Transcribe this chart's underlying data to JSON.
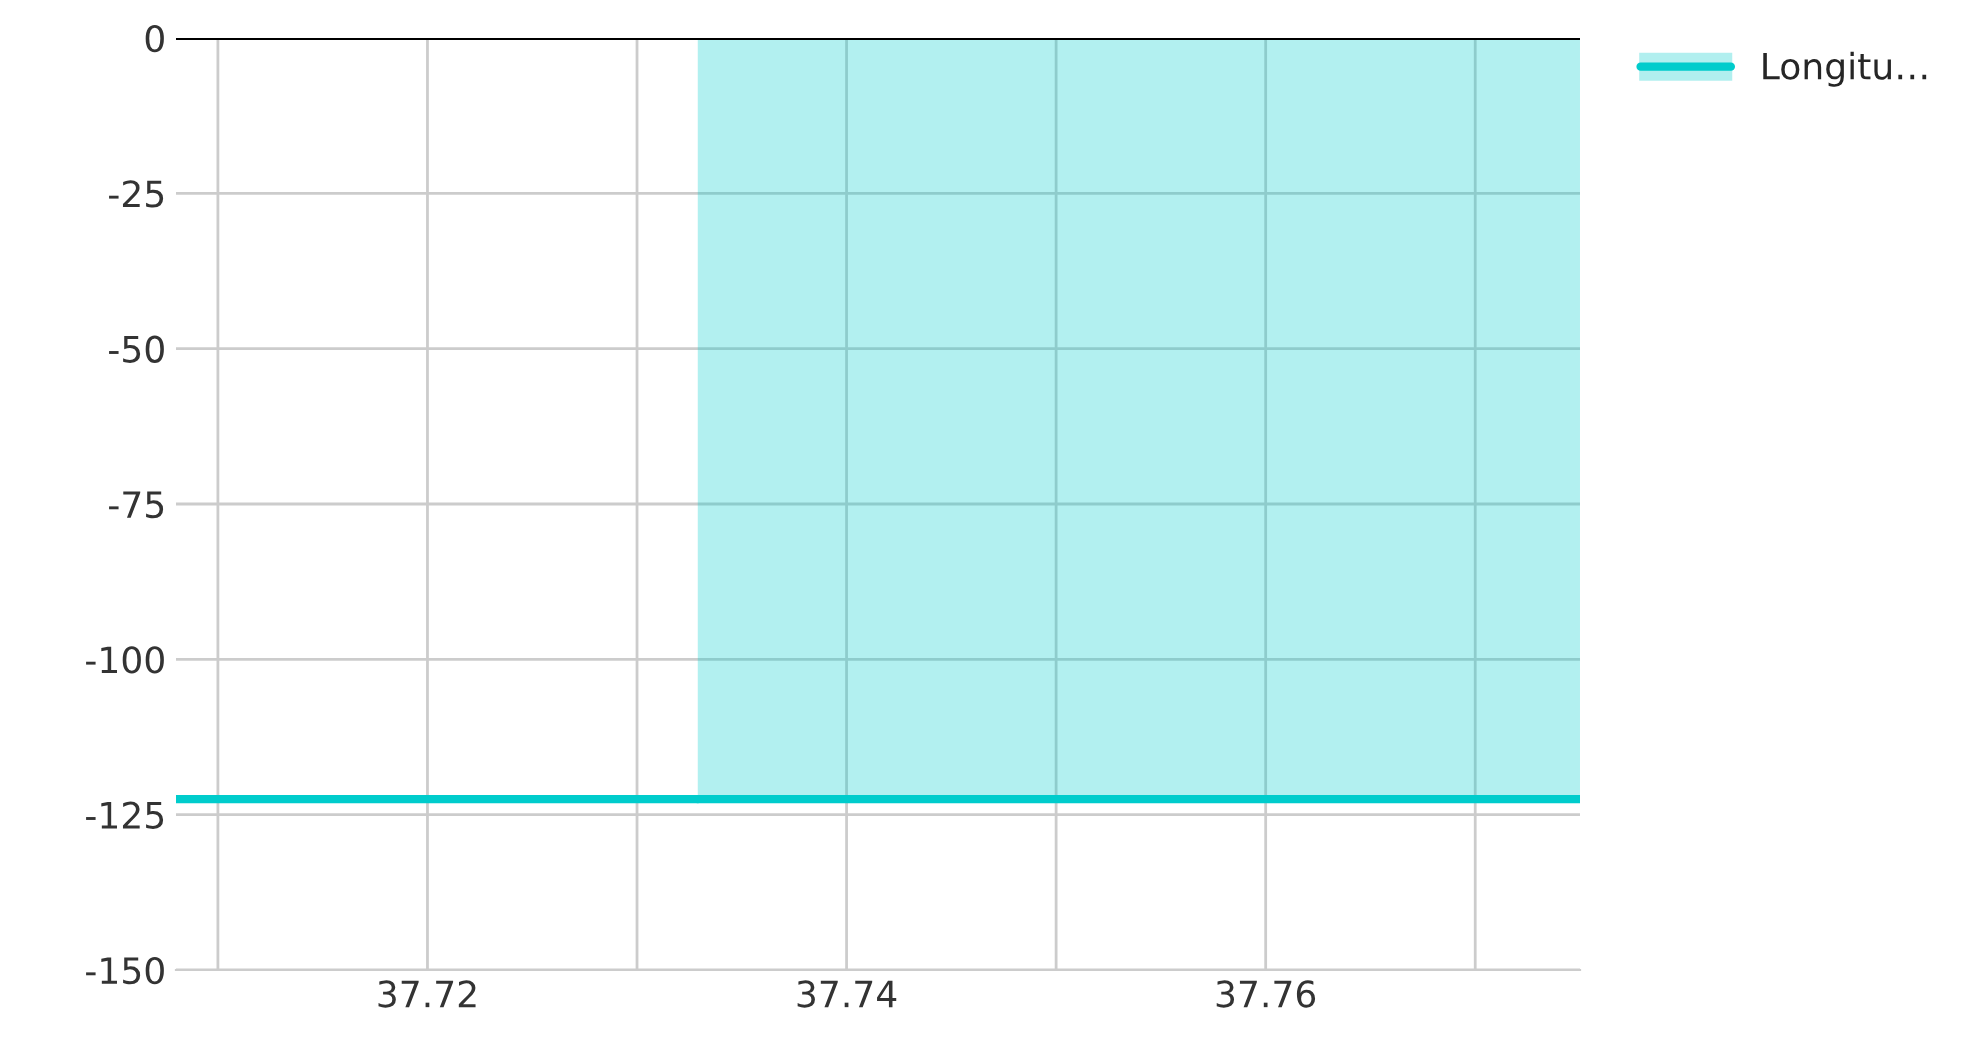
{
  "chart_data": {
    "type": "area",
    "series": [
      {
        "type": "line",
        "color": "#00cccc",
        "x": [
          37.708,
          37.7329
        ],
        "values": [
          -122.5,
          -122.5
        ]
      },
      {
        "name": "Longitu…",
        "color": "#00cccc",
        "x": [
          37.7329,
          37.775
        ],
        "values": [
          -122.5,
          -122.5
        ]
      }
    ],
    "xlim": [
      37.708,
      37.775
    ],
    "xticks": [
      {
        "value": 37.71,
        "label": null
      },
      37.72,
      {
        "value": 37.73,
        "label": null
      },
      37.74,
      {
        "value": 37.75,
        "label": null
      },
      37.76,
      {
        "value": 37.77,
        "label": null
      }
    ],
    "ylim": [
      -150,
      0
    ],
    "yticks": [
      -150,
      -125,
      -100,
      -75,
      -50,
      -25,
      0
    ],
    "ref_lines": [
      {
        "axis": "y",
        "value": 0,
        "color": "#000000"
      }
    ],
    "grid": true,
    "legend": "top right"
  }
}
